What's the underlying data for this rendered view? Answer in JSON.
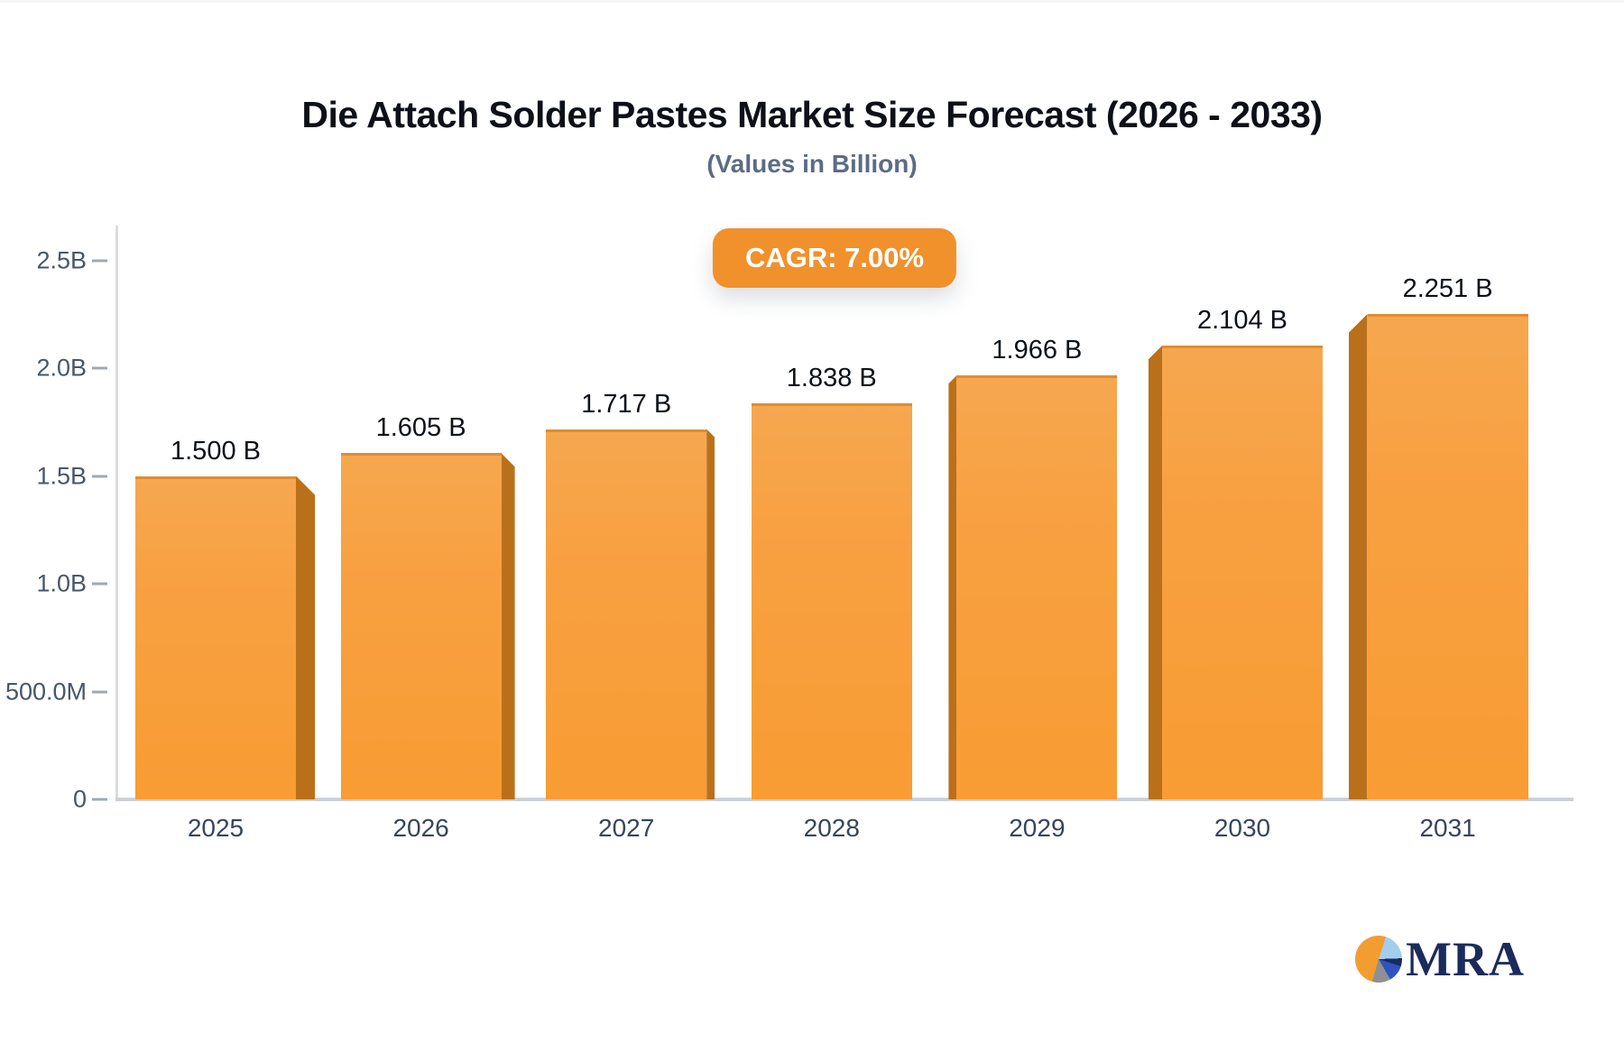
{
  "header": {
    "title": "Die Attach Solder Pastes Market Size Forecast (2026 - 2033)",
    "subtitle": "(Values in Billion)",
    "cagr_badge": "CAGR: 7.00%"
  },
  "chart_data": {
    "type": "bar",
    "title": "Die Attach Solder Pastes Market Size Forecast (2026 - 2033)",
    "subtitle": "(Values in Billion)",
    "cagr_label": "CAGR: 7.00%",
    "categories": [
      "2025",
      "2026",
      "2027",
      "2028",
      "2029",
      "2030",
      "2031"
    ],
    "values": [
      1.5,
      1.605,
      1.717,
      1.838,
      1.966,
      2.104,
      2.251
    ],
    "value_labels": [
      "1.500 B",
      "1.605 B",
      "1.717 B",
      "1.838 B",
      "1.966 B",
      "2.104 B",
      "2.251 B"
    ],
    "y_ticks": [
      {
        "label": "2.5B",
        "value": 2.5
      },
      {
        "label": "2.0B",
        "value": 2.0
      },
      {
        "label": "1.5B",
        "value": 1.5
      },
      {
        "label": "1.0B",
        "value": 1.0
      },
      {
        "label": "500.0M",
        "value": 0.5
      },
      {
        "label": "0",
        "value": 0
      }
    ],
    "ylim": [
      0,
      2.5
    ],
    "grid": false,
    "legend": false,
    "bar_face_color": "#f89d35",
    "bar_side_color": "#ba701b",
    "badge_color": "#f0912c",
    "style": "pseudo-3d bars, side face toward chart center"
  },
  "logo": {
    "text": "MRA",
    "pie_colors": [
      "#f39c2f",
      "#a3cdee",
      "#1a2a5e",
      "#2e55be",
      "#8f9094"
    ]
  }
}
